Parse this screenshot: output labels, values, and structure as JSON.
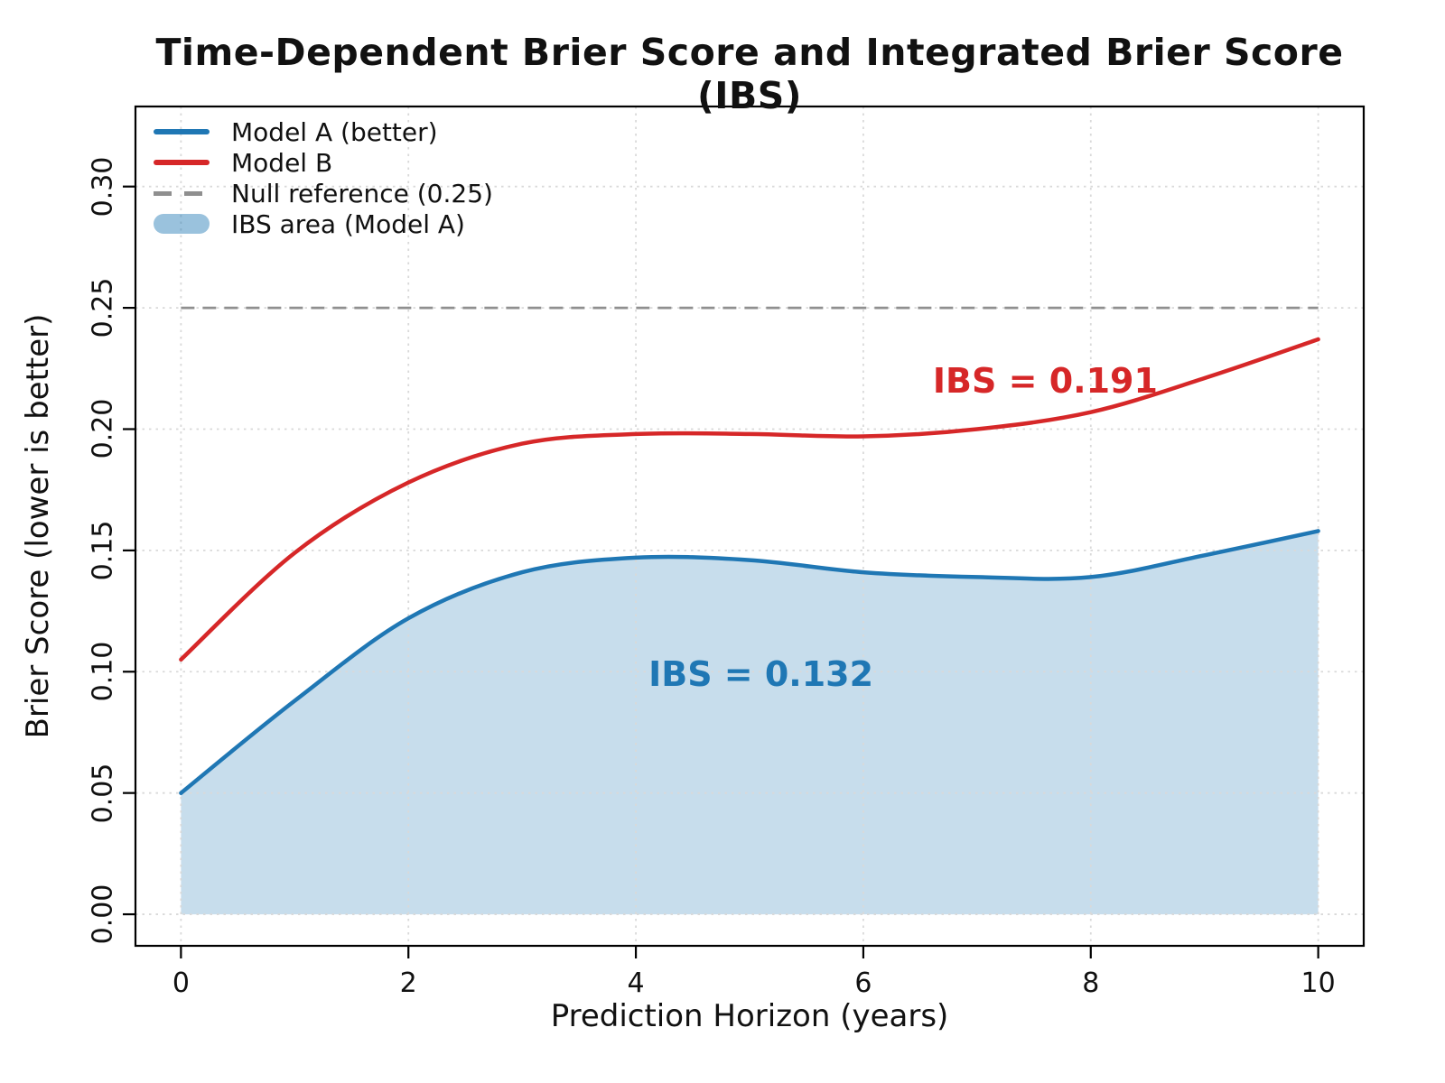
{
  "chart_data": {
    "type": "line",
    "title": "Time-Dependent Brier Score and Integrated Brier Score (IBS)",
    "xlabel": "Prediction Horizon (years)",
    "ylabel": "Brier Score (lower is better)",
    "x": [
      0,
      1,
      2,
      3,
      4,
      5,
      6,
      7,
      8,
      9,
      10
    ],
    "series": [
      {
        "name": "Model A (better)",
        "color": "#1f77b4",
        "ibs": 0.132,
        "area_fill": true,
        "values": [
          0.05,
          0.088,
          0.122,
          0.141,
          0.147,
          0.146,
          0.141,
          0.139,
          0.139,
          0.148,
          0.158
        ]
      },
      {
        "name": "Model B",
        "color": "#d62728",
        "ibs": 0.191,
        "area_fill": false,
        "values": [
          0.105,
          0.149,
          0.178,
          0.194,
          0.198,
          0.198,
          0.197,
          0.2,
          0.207,
          0.221,
          0.237
        ]
      }
    ],
    "reference_line": {
      "label": "Null reference (0.25)",
      "value": 0.25,
      "color": "#8f8f8f",
      "style": "dashed"
    },
    "area_legend_label": "IBS area (Model A)",
    "fill_opacity": 0.25,
    "annotations": [
      {
        "text": "IBS = 0.191",
        "x": 7.6,
        "y": 0.22,
        "color": "#d62728"
      },
      {
        "text": "IBS = 0.132",
        "x": 5.1,
        "y": 0.099,
        "color": "#1f77b4"
      }
    ],
    "xticks": [
      0,
      2,
      4,
      6,
      8,
      10
    ],
    "yticks": [
      0.0,
      0.05,
      0.1,
      0.15,
      0.2,
      0.25,
      0.3
    ],
    "xlim": [
      -0.4,
      10.4
    ],
    "ylim": [
      -0.013,
      0.333
    ],
    "grid": true,
    "grid_color": "#d9d9d9",
    "box_color": "#000000",
    "legend_position": "upper-left"
  }
}
